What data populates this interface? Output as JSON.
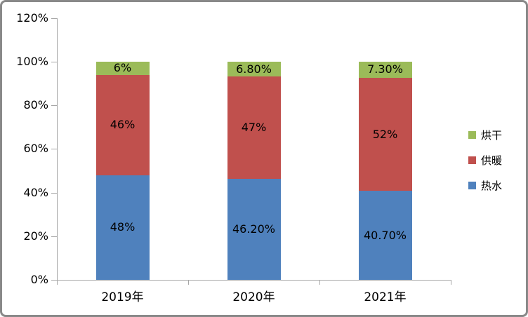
{
  "chart_data": {
    "type": "bar",
    "stacked": true,
    "title": "",
    "categories": [
      "2019年",
      "2020年",
      "2021年"
    ],
    "series": [
      {
        "key": "hot-water",
        "name": "热水",
        "color": "#4F81BD",
        "values": [
          48,
          46.2,
          40.7
        ],
        "data_labels": [
          "48%",
          "46.20%",
          "40.70%"
        ]
      },
      {
        "key": "heating",
        "name": "供暖",
        "color": "#C0504D",
        "values": [
          46,
          47,
          52
        ],
        "data_labels": [
          "46%",
          "47%",
          "52%"
        ]
      },
      {
        "key": "drying",
        "name": "烘干",
        "color": "#9BBB59",
        "values": [
          6,
          6.8,
          7.3
        ],
        "data_labels": [
          "6%",
          "6.80%",
          "7.30%"
        ]
      }
    ],
    "y_axis": {
      "min": 0,
      "max": 120,
      "step": 20,
      "tick_labels": [
        "0%",
        "20%",
        "40%",
        "60%",
        "80%",
        "100%",
        "120%"
      ]
    },
    "x_axis": {
      "label": ""
    },
    "legend": {
      "position": "right",
      "items": [
        {
          "key": "drying",
          "label": "烘干"
        },
        {
          "key": "heating",
          "label": "供暖"
        },
        {
          "key": "hot-water",
          "label": "热水"
        }
      ]
    },
    "grid": false,
    "axis_color": "#A6A6A6",
    "label_color": "#000000"
  },
  "frame": {
    "background": "#FFFFFF",
    "border_color": "#898989"
  }
}
